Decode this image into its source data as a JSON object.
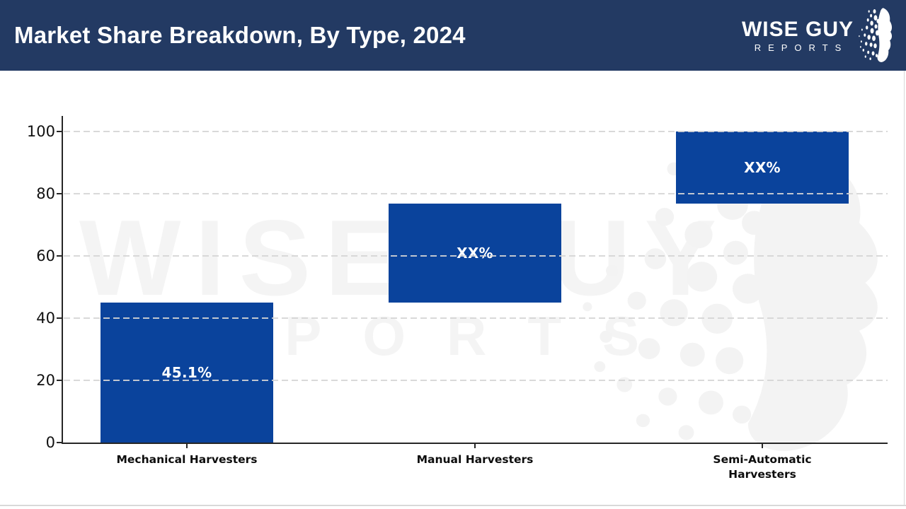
{
  "header": {
    "title": "Market Share Breakdown, By Type, 2024",
    "logo": {
      "primary": "WISE GUY",
      "secondary": "REPORTS"
    }
  },
  "watermark": {
    "primary": "WISE GUY",
    "secondary": "REPORTS"
  },
  "chart_data": {
    "type": "bar",
    "subtype": "waterfall (floating cumulative segments)",
    "title": "Market Share Breakdown, By Type, 2024",
    "categories": [
      "Mechanical Harvesters",
      "Manual Harvesters",
      "Semi-Automatic Harvesters"
    ],
    "series": [
      {
        "name": "Market share (%)",
        "segment_start": [
          0,
          45.1,
          76.9
        ],
        "segment_end": [
          45.1,
          76.9,
          100
        ],
        "values": [
          45.1,
          31.8,
          23.1
        ],
        "bar_labels": [
          "45.1%",
          "XX%",
          "XX%"
        ]
      }
    ],
    "xlabel": "",
    "ylabel": "",
    "ylim": [
      0,
      105
    ],
    "yticks": [
      0,
      20,
      40,
      60,
      80,
      100
    ],
    "grid": "horizontal dashed gridlines",
    "legend": "none"
  },
  "colors": {
    "header_bg": "#233a63",
    "bar": "#0a439c",
    "bar_label": "#ffffff",
    "gridline": "#d5d5d5",
    "axis": "#262626",
    "tick_text": "#111111",
    "watermark": "#f4f4f4"
  }
}
